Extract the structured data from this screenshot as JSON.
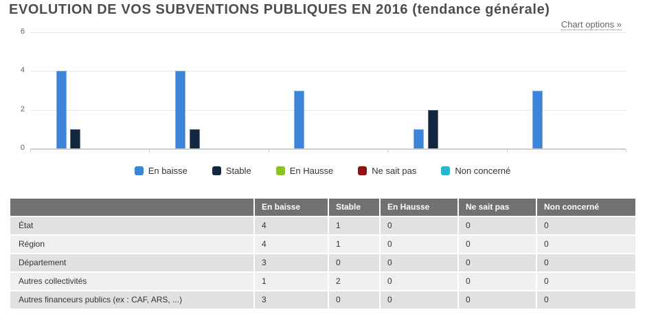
{
  "title": "EVOLUTION DE VOS SUBVENTIONS PUBLIQUES EN 2016 (tendance générale)",
  "chart_options_label": "Chart options »",
  "chart_data": {
    "type": "bar",
    "title": "EVOLUTION DE VOS SUBVENTIONS PUBLIQUES EN 2016 (tendance générale)",
    "categories": [
      "État",
      "Région",
      "Département",
      "Autres collectivités",
      "Autres financeurs publics (ex : CAF, ARS, ...)"
    ],
    "series": [
      {
        "name": "En baisse",
        "color": "#3b84d8",
        "values": [
          4,
          4,
          3,
          1,
          3
        ]
      },
      {
        "name": "Stable",
        "color": "#132740",
        "values": [
          1,
          1,
          0,
          2,
          0
        ]
      },
      {
        "name": "En Hausse",
        "color": "#8ec02a",
        "values": [
          0,
          0,
          0,
          0,
          0
        ]
      },
      {
        "name": "Ne sait pas",
        "color": "#901013",
        "values": [
          0,
          0,
          0,
          0,
          0
        ]
      },
      {
        "name": "Non concerné",
        "color": "#29b5cc",
        "values": [
          0,
          0,
          0,
          0,
          0
        ]
      }
    ],
    "xlabel": "",
    "ylabel": "",
    "ylim": [
      0,
      6
    ],
    "y_ticks": [
      0,
      2,
      4,
      6
    ],
    "grid": true,
    "x_tick_labels_visible": false,
    "legend_position": "bottom"
  },
  "table": {
    "columns": [
      "",
      "En baisse",
      "Stable",
      "En Hausse",
      "Ne sait pas",
      "Non concerné"
    ],
    "rows": [
      {
        "label": "État",
        "values": [
          4,
          1,
          0,
          0,
          0
        ]
      },
      {
        "label": "Région",
        "values": [
          4,
          1,
          0,
          0,
          0
        ]
      },
      {
        "label": "Département",
        "values": [
          3,
          0,
          0,
          0,
          0
        ]
      },
      {
        "label": "Autres collectivités",
        "values": [
          1,
          2,
          0,
          0,
          0
        ]
      },
      {
        "label": "Autres financeurs publics (ex : CAF, ARS, ...)",
        "values": [
          3,
          0,
          0,
          0,
          0
        ]
      }
    ]
  }
}
